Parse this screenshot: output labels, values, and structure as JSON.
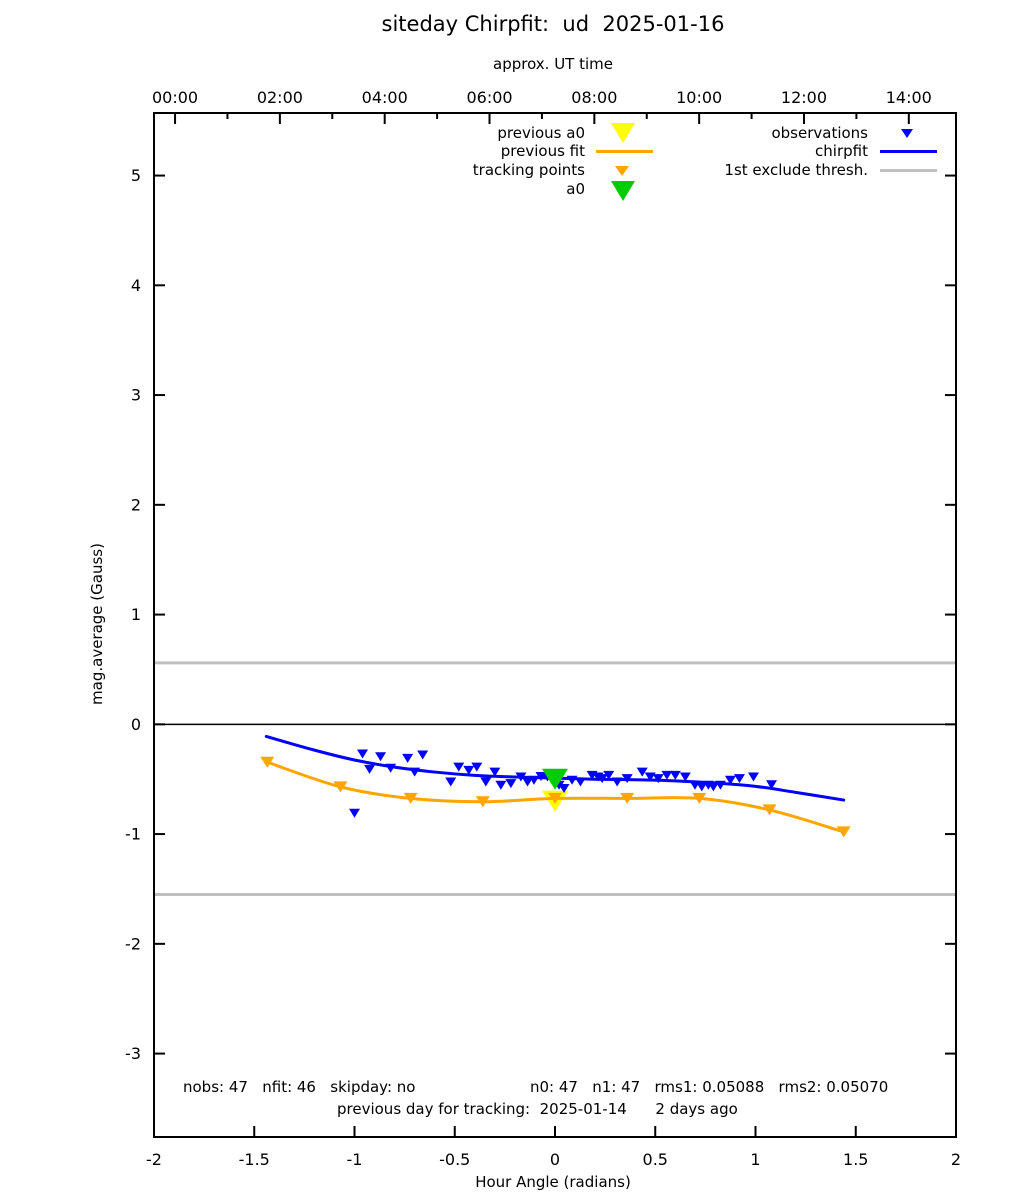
{
  "title": "siteday Chirpfit:  ud  2025-01-16",
  "colors": {
    "blue": "#0000ff",
    "orange": "#ffa500",
    "yellow": "#ffff00",
    "green": "#00cc00",
    "gray": "#c0c0c0",
    "black": "#000000"
  },
  "legend": {
    "left": [
      {
        "label": "previous a0",
        "marker": "triangle-big",
        "color": "#ffff00"
      },
      {
        "label": "previous fit",
        "marker": "line",
        "color": "#ffa500"
      },
      {
        "label": "tracking points",
        "marker": "triangle-small",
        "color": "#ffa500"
      },
      {
        "label": "a0",
        "marker": "triangle-big",
        "color": "#00cc00"
      }
    ],
    "right": [
      {
        "label": "observations",
        "marker": "triangle-tiny",
        "color": "#0000ff"
      },
      {
        "label": "chirpfit",
        "marker": "line",
        "color": "#0000ff"
      },
      {
        "label": "1st exclude thresh.",
        "marker": "line",
        "color": "#c0c0c0"
      }
    ]
  },
  "stats": {
    "line1_left": "nobs: 47   nfit: 46   skipday: no",
    "line1_right": "n0: 47   n1: 47   rms1: 0.05088   rms2: 0.05070",
    "line2": "previous day for tracking:  2025-01-14      2 days ago"
  },
  "chart_data": {
    "type": "scatter",
    "title": "siteday Chirpfit:  ud  2025-01-16",
    "xlabel": "Hour Angle (radians)",
    "x2label": "approx. UT time",
    "ylabel": "mag.average (Gauss)",
    "x_range": [
      -2,
      2
    ],
    "y_range": [
      -3.76,
      5.57
    ],
    "grid": false,
    "x_ticks": [
      -2,
      -1.5,
      -1,
      -0.5,
      0,
      0.5,
      1,
      1.5,
      2
    ],
    "x_tick_labels": [
      "-2",
      "-1.5",
      "-1",
      "-0.5",
      "0",
      "0.5",
      "1",
      "1.5",
      "2"
    ],
    "y_ticks": [
      -3,
      -2,
      -1,
      0,
      1,
      2,
      3,
      4,
      5
    ],
    "y_tick_labels": [
      "-3",
      "-2",
      "-1",
      "0",
      "1",
      "2",
      "3",
      "4",
      "5"
    ],
    "ut_axis": {
      "ha_at_hour0": -1.895,
      "ha_per_hour": 0.2614,
      "hours_major": [
        0,
        2,
        4,
        6,
        8,
        10,
        12,
        14
      ],
      "hours_minor": [
        1,
        3,
        5,
        7,
        9,
        11,
        13
      ],
      "labels": [
        "00:00",
        "02:00",
        "04:00",
        "06:00",
        "08:00",
        "10:00",
        "12:00",
        "14:00"
      ]
    },
    "zero_line": 0,
    "exclude_thresholds": {
      "color": "#c0c0c0",
      "values": [
        0.56,
        -1.55
      ]
    },
    "series": {
      "observations": {
        "name": "observations",
        "color": "#0000ff",
        "marker": "triangle-down",
        "points": [
          [
            -1.0,
            -0.81
          ],
          [
            -0.96,
            -0.27
          ],
          [
            -0.925,
            -0.41
          ],
          [
            -0.87,
            -0.295
          ],
          [
            -0.82,
            -0.4
          ],
          [
            -0.735,
            -0.31
          ],
          [
            -0.7,
            -0.435
          ],
          [
            -0.66,
            -0.28
          ],
          [
            -0.52,
            -0.525
          ],
          [
            -0.48,
            -0.39
          ],
          [
            -0.43,
            -0.42
          ],
          [
            -0.39,
            -0.39
          ],
          [
            -0.345,
            -0.525
          ],
          [
            -0.3,
            -0.435
          ],
          [
            -0.27,
            -0.555
          ],
          [
            -0.22,
            -0.54
          ],
          [
            -0.17,
            -0.48
          ],
          [
            -0.137,
            -0.525
          ],
          [
            -0.105,
            -0.51
          ],
          [
            -0.07,
            -0.475
          ],
          [
            -0.038,
            -0.48
          ],
          [
            0.0,
            -0.53
          ],
          [
            0.02,
            -0.555
          ],
          [
            0.045,
            -0.585
          ],
          [
            0.085,
            -0.51
          ],
          [
            0.127,
            -0.525
          ],
          [
            0.185,
            -0.465
          ],
          [
            0.215,
            -0.48
          ],
          [
            0.235,
            -0.495
          ],
          [
            0.268,
            -0.465
          ],
          [
            0.31,
            -0.525
          ],
          [
            0.36,
            -0.495
          ],
          [
            0.435,
            -0.435
          ],
          [
            0.475,
            -0.48
          ],
          [
            0.515,
            -0.495
          ],
          [
            0.558,
            -0.465
          ],
          [
            0.6,
            -0.465
          ],
          [
            0.65,
            -0.48
          ],
          [
            0.698,
            -0.555
          ],
          [
            0.732,
            -0.57
          ],
          [
            0.765,
            -0.555
          ],
          [
            0.79,
            -0.57
          ],
          [
            0.825,
            -0.555
          ],
          [
            0.875,
            -0.51
          ],
          [
            0.92,
            -0.495
          ],
          [
            0.99,
            -0.48
          ],
          [
            1.08,
            -0.55
          ]
        ]
      },
      "chirpfit": {
        "name": "chirpfit",
        "color": "#0000ff",
        "style": "line",
        "curve": [
          [
            -1.44,
            -0.11
          ],
          [
            -1.2,
            -0.235
          ],
          [
            -1.0,
            -0.325
          ],
          [
            -0.8,
            -0.39
          ],
          [
            -0.6,
            -0.435
          ],
          [
            -0.4,
            -0.465
          ],
          [
            -0.2,
            -0.48
          ],
          [
            0.0,
            -0.49
          ],
          [
            0.2,
            -0.5
          ],
          [
            0.4,
            -0.505
          ],
          [
            0.6,
            -0.515
          ],
          [
            0.8,
            -0.535
          ],
          [
            1.0,
            -0.565
          ],
          [
            1.2,
            -0.62
          ],
          [
            1.44,
            -0.69
          ]
        ]
      },
      "tracking_points": {
        "name": "tracking points",
        "color": "#ffa500",
        "marker": "triangle-down",
        "points": [
          [
            -1.435,
            -0.345
          ],
          [
            -1.07,
            -0.57
          ],
          [
            -0.72,
            -0.675
          ],
          [
            -0.36,
            -0.705
          ],
          [
            0.0,
            -0.675
          ],
          [
            0.36,
            -0.675
          ],
          [
            0.72,
            -0.675
          ],
          [
            1.07,
            -0.78
          ],
          [
            1.44,
            -0.98
          ]
        ]
      },
      "previous_fit": {
        "name": "previous fit",
        "color": "#ffa500",
        "style": "line",
        "curve": [
          [
            -1.435,
            -0.345
          ],
          [
            -1.07,
            -0.57
          ],
          [
            -0.72,
            -0.675
          ],
          [
            -0.36,
            -0.705
          ],
          [
            0.0,
            -0.675
          ],
          [
            0.36,
            -0.675
          ],
          [
            0.72,
            -0.675
          ],
          [
            1.07,
            -0.78
          ],
          [
            1.44,
            -0.98
          ]
        ]
      },
      "a0": {
        "name": "a0",
        "color": "#00cc00",
        "marker": "triangle-down-big",
        "point": [
          0.0,
          -0.5
        ]
      },
      "previous_a0": {
        "name": "previous a0",
        "color": "#ffff00",
        "marker": "triangle-down-big",
        "point": [
          0.0,
          -0.7
        ]
      }
    }
  }
}
